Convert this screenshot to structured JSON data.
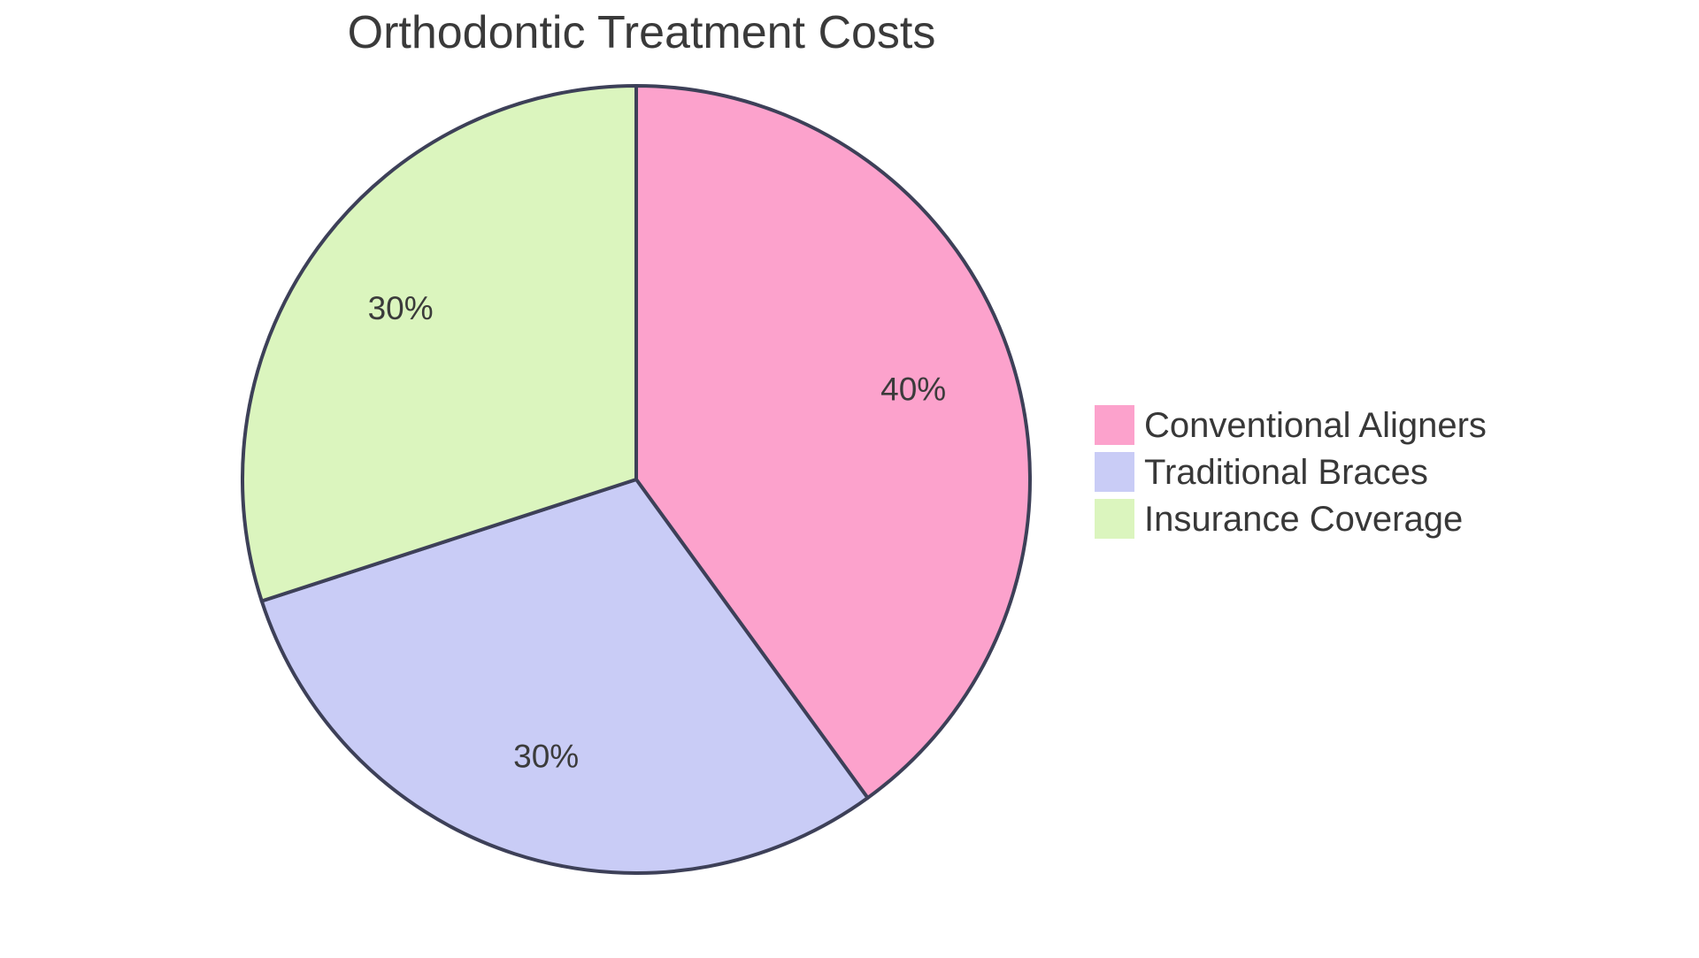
{
  "chart_data": {
    "type": "pie",
    "title": "Orthodontic Treatment Costs",
    "direction": "clockwise",
    "start_angle_deg": 0,
    "categories": [
      "Conventional Aligners",
      "Traditional Braces",
      "Insurance Coverage"
    ],
    "values": [
      40,
      30,
      30
    ],
    "slices": [
      {
        "label": "Conventional Aligners",
        "value": 40,
        "percent_label": "40%",
        "color": "#FCA2CC"
      },
      {
        "label": "Traditional Braces",
        "value": 30,
        "percent_label": "30%",
        "color": "#C9CCF6"
      },
      {
        "label": "Insurance Coverage",
        "value": 30,
        "percent_label": "30%",
        "color": "#DBF5BE"
      }
    ],
    "stroke_color": "#3D4058",
    "stroke_width": 4,
    "percent_label_color": "#3B3B3B",
    "percent_label_radius_ratio": 0.74,
    "legend_position": "right",
    "background_color": "#FFFFFF"
  },
  "title": {
    "text": "Orthodontic Treatment Costs",
    "color": "#3A3A3A"
  },
  "legend": {
    "items": [
      {
        "label": "Conventional Aligners",
        "color": "#FCA2CC"
      },
      {
        "label": "Traditional Braces",
        "color": "#C9CCF6"
      },
      {
        "label": "Insurance Coverage",
        "color": "#DBF5BE"
      }
    ]
  }
}
